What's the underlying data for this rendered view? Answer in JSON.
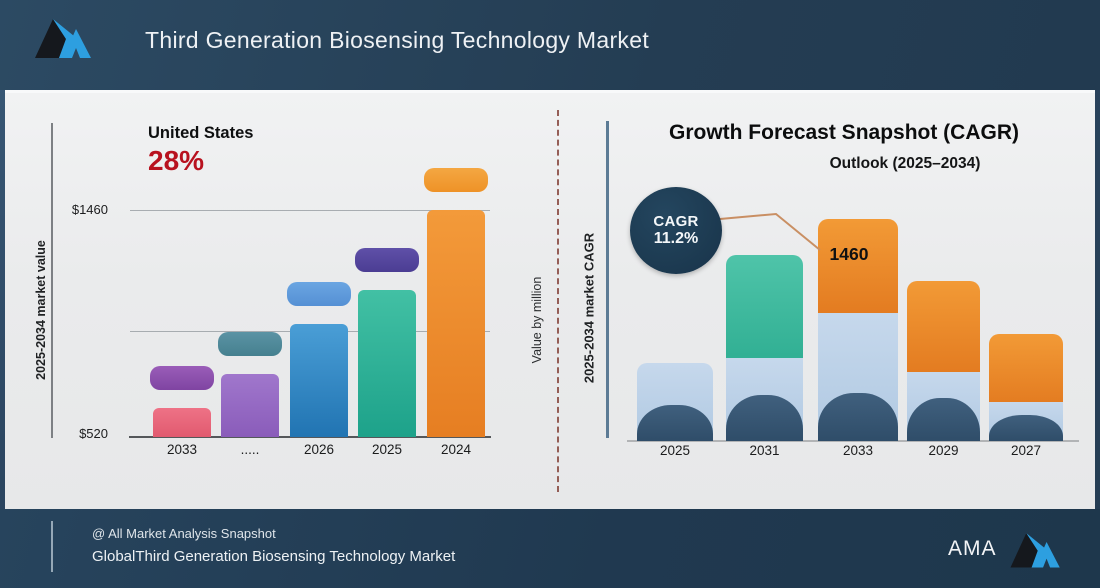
{
  "header": {
    "title": "Third Generation Biosensing Technology Market"
  },
  "brand": {
    "name": "AMA",
    "logo_black": "#15181d",
    "logo_blue": "#2d9fe0"
  },
  "left_chart": {
    "region_label": "United States",
    "highlight_value": "28%",
    "highlight_color": "#b8121f",
    "y_axis_title": "2025-2034 market value",
    "right_axis_title": "Value by million",
    "y_tick_top": "$1460",
    "y_tick_bottom": "$520"
  },
  "right_chart": {
    "title": "Growth Forecast Snapshot (CAGR)",
    "subtitle": "Outlook (2025–2034)",
    "y_axis_title": "2025-2034 market CAGR",
    "badge_line1": "CAGR",
    "badge_line2": "11.2%",
    "peak_label": "1460"
  },
  "footer": {
    "line1": "@ All Market Analysis Snapshot",
    "line2": "GlobalThird Generation Biosensing Technology Market",
    "brand": "AMA"
  },
  "chart_data": [
    {
      "type": "bar",
      "title": "United States",
      "highlight": "28%",
      "ylabel": "2025-2034 market value",
      "ylabel_right": "Value by million",
      "ylim": [
        520,
        1460
      ],
      "yticks": [
        "$520",
        "$1460"
      ],
      "grid": "horizontal",
      "categories": [
        "2033",
        ".....",
        "2026",
        "2025",
        "2024"
      ],
      "values": [
        640,
        780,
        990,
        1130,
        1460
      ],
      "note": "each bar has a detached floating rounded cap above it",
      "bar_colors": [
        [
          "#ee7286",
          "#e15a6f"
        ],
        [
          "#a077cc",
          "#8a5cba"
        ],
        [
          "#4a9ed6",
          "#2174b2"
        ],
        [
          "#42c0a4",
          "#1da28a"
        ],
        [
          "#f39a3a",
          "#e67e22"
        ]
      ],
      "cap_colors": [
        [
          "#9a5db8",
          "#7f44a2"
        ],
        [
          "#5b93a4",
          "#45808f"
        ],
        [
          "#6aa5e2",
          "#5590d4"
        ],
        [
          "#5f50a8",
          "#4b3d93"
        ],
        [
          "#f4a742",
          "#ee9227"
        ]
      ]
    },
    {
      "type": "bar",
      "stacked": true,
      "title": "Growth Forecast Snapshot (CAGR)",
      "subtitle": "Outlook (2025–2034)",
      "ylabel": "2025-2034 market CAGR",
      "cagr_percent": 11.2,
      "annotation": {
        "category": "2033",
        "label": "1460"
      },
      "categories": [
        "2025",
        "2031",
        "2033",
        "2029",
        "2027"
      ],
      "series": [
        {
          "name": "base",
          "color_key": "navy",
          "values": [
            240,
            300,
            315,
            285,
            170
          ]
        },
        {
          "name": "mid",
          "color_key": "lightblue",
          "values": [
            275,
            245,
            525,
            170,
            85
          ]
        },
        {
          "name": "top",
          "color_key": "accent",
          "values": [
            0,
            680,
            620,
            600,
            450
          ]
        }
      ],
      "accent_keys": [
        null,
        "teal",
        "orange",
        "orange",
        "orange"
      ],
      "totals": [
        515,
        1225,
        1460,
        1055,
        705
      ],
      "legend": "none"
    }
  ],
  "palette": {
    "navy": [
      "#40607e",
      "#2f4d69"
    ],
    "lightblue": [
      "#c6d8ec",
      "#b0c9e2"
    ],
    "teal": [
      "#4fc4a9",
      "#2fae92"
    ],
    "orange": [
      "#f29a36",
      "#e2791f"
    ],
    "badge_bg": "#1d3b52",
    "connector": "#c98f63",
    "grid": "#9ba1a6"
  }
}
